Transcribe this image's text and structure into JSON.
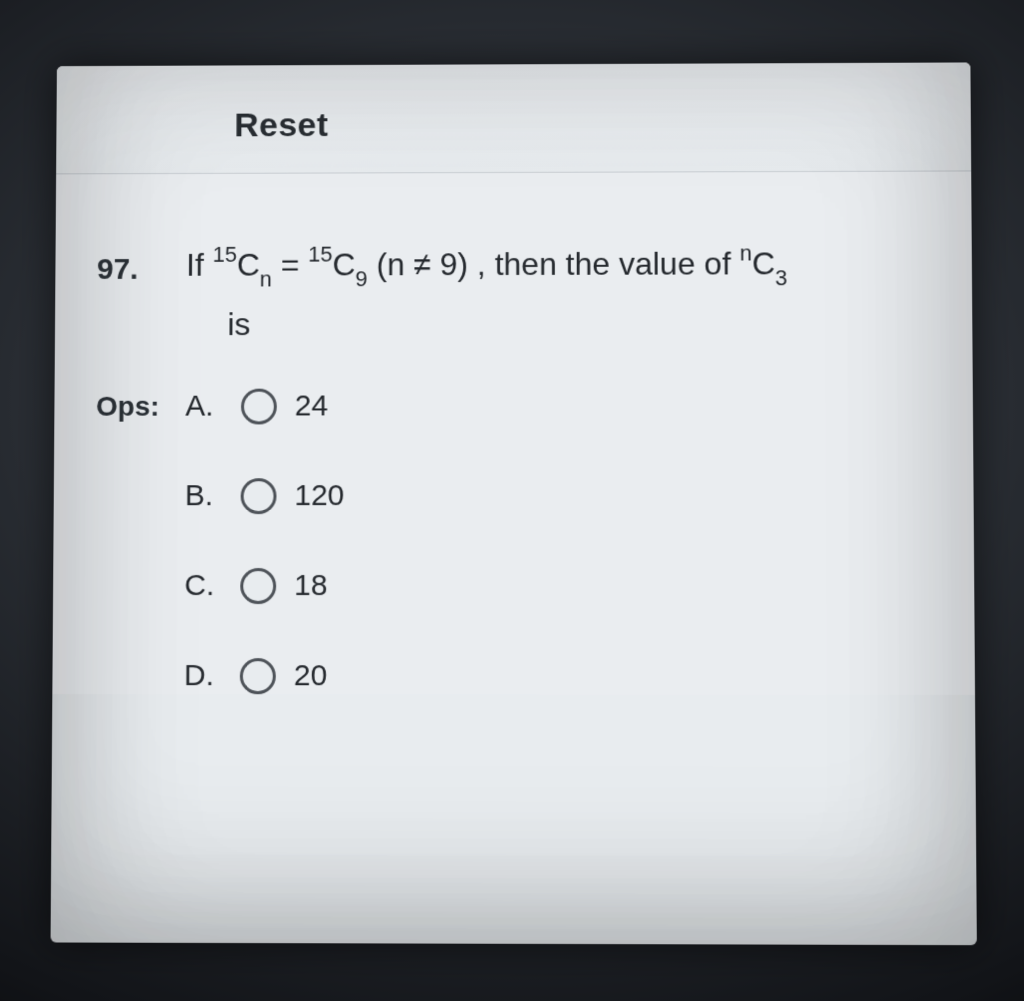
{
  "header": {
    "reset_label": "Reset"
  },
  "question": {
    "number": "97.",
    "if_word": "If",
    "expr_left_sup": "15",
    "expr_left_base": "C",
    "expr_left_sub": "n",
    "equals": " = ",
    "expr_right_sup": "15",
    "expr_right_base": "C",
    "expr_right_sub": "9",
    "condition": " (n ≠ 9) ",
    "then_text": ", then the value of ",
    "result_sup": "n",
    "result_base": "C",
    "result_sub": "3",
    "is_word": "is"
  },
  "ops_label": "Ops:",
  "options": [
    {
      "letter": "A.",
      "value": "24"
    },
    {
      "letter": "B.",
      "value": "120"
    },
    {
      "letter": "C.",
      "value": "18"
    },
    {
      "letter": "D.",
      "value": "20"
    }
  ],
  "style": {
    "screen_bg": "#e8ecef",
    "text_color": "#25292e",
    "radio_border": "#4d5258",
    "divider": "#c8cdd2"
  }
}
